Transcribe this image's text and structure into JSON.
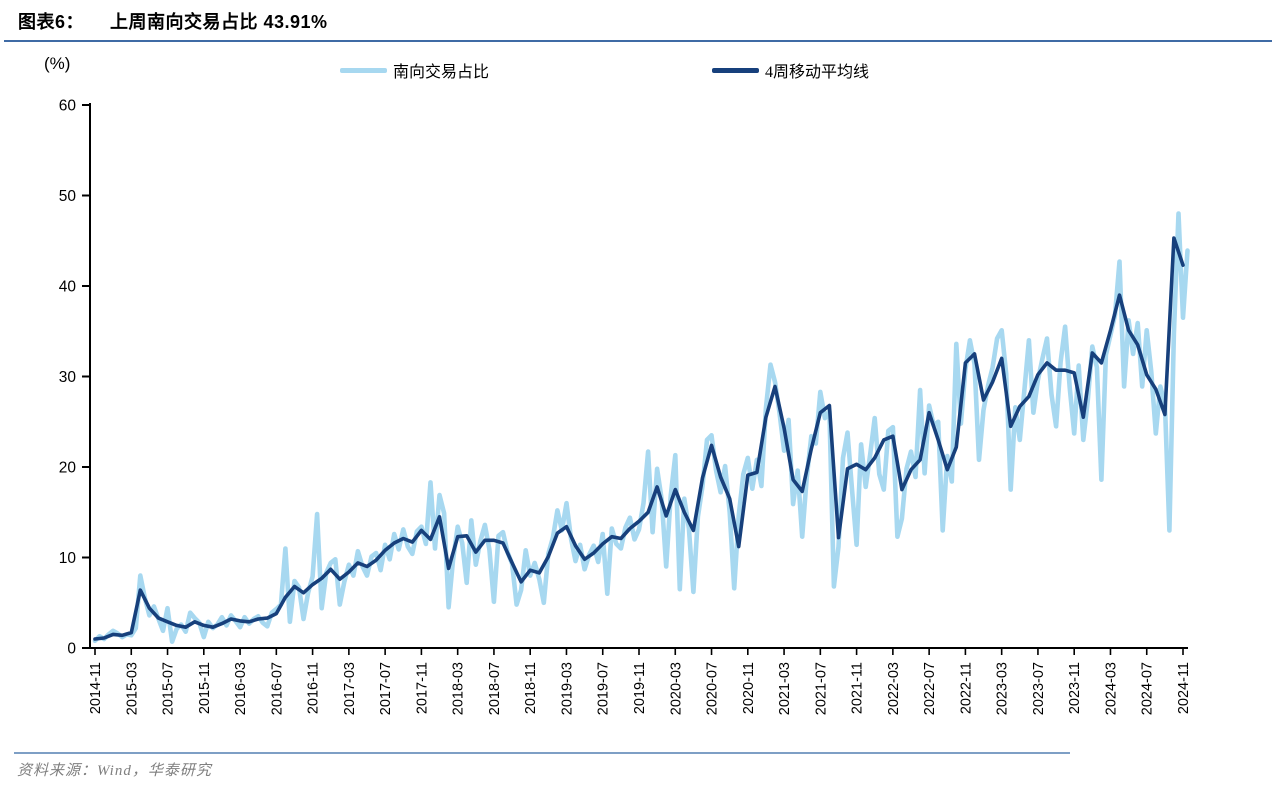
{
  "figure": {
    "label": "图表6：",
    "title": "上周南向交易占比 43.91%",
    "unit_label": "(%)",
    "source_note": "资料来源：Wind，华泰研究"
  },
  "legend": [
    {
      "label": "南向交易占比",
      "color": "#A7D8F0"
    },
    {
      "label": "4周移动平均线",
      "color": "#17407C"
    }
  ],
  "chart_data": {
    "type": "line",
    "title": "上周南向交易占比 43.91%",
    "ylabel": "(%)",
    "ylim": [
      0,
      60
    ],
    "y_ticks": [
      0,
      10,
      20,
      30,
      40,
      50,
      60
    ],
    "grid": false,
    "legend_position": "top",
    "x_start": "2014-11",
    "x_end": "2024-11",
    "x_tick_labels": [
      "2014-11",
      "2015-03",
      "2015-07",
      "2015-11",
      "2016-03",
      "2016-07",
      "2016-11",
      "2017-03",
      "2017-07",
      "2017-11",
      "2018-03",
      "2018-07",
      "2018-11",
      "2019-03",
      "2019-07",
      "2019-11",
      "2020-03",
      "2020-07",
      "2020-11",
      "2021-03",
      "2021-07",
      "2021-11",
      "2022-03",
      "2022-07",
      "2022-11",
      "2023-03",
      "2023-07",
      "2023-11",
      "2024-03",
      "2024-07",
      "2024-11"
    ],
    "series": [
      {
        "name": "南向交易占比",
        "color": "#A7D8F0",
        "points_per_month": 2,
        "values": [
          0.8,
          1.3,
          1.0,
          1.5,
          1.9,
          1.6,
          1.2,
          1.5,
          1.4,
          2.2,
          8.0,
          5.5,
          3.6,
          4.6,
          3.2,
          1.9,
          4.4,
          0.7,
          2.1,
          2.6,
          1.8,
          3.9,
          3.3,
          2.8,
          1.2,
          2.9,
          2.2,
          2.6,
          3.4,
          2.5,
          3.6,
          3.0,
          2.3,
          3.4,
          2.7,
          3.2,
          3.5,
          2.8,
          2.4,
          3.9,
          4.3,
          4.8,
          11.0,
          2.9,
          7.4,
          6.7,
          3.2,
          6.1,
          7.9,
          14.8,
          4.4,
          8.3,
          9.4,
          9.8,
          4.8,
          7.3,
          9.2,
          8.0,
          10.7,
          9.0,
          8.0,
          10.1,
          10.5,
          8.6,
          11.4,
          9.8,
          12.6,
          10.9,
          13.1,
          11.2,
          10.4,
          12.9,
          13.4,
          11.5,
          18.3,
          11.0,
          16.9,
          14.9,
          4.5,
          9.8,
          13.4,
          11.6,
          7.2,
          14.1,
          9.2,
          11.8,
          13.6,
          10.9,
          5.1,
          12.4,
          12.8,
          10.6,
          9.3,
          4.8,
          6.4,
          10.8,
          8.0,
          9.4,
          7.6,
          5.0,
          10.4,
          12.2,
          15.2,
          13.0,
          16.0,
          12.1,
          9.6,
          11.4,
          8.7,
          10.3,
          11.3,
          9.5,
          12.6,
          6.0,
          13.2,
          11.5,
          11.0,
          13.3,
          14.4,
          12.0,
          13.1,
          16.0,
          21.7,
          12.8,
          19.8,
          16.4,
          9.0,
          16.8,
          21.3,
          6.5,
          16.5,
          13.2,
          6.2,
          14.5,
          17.9,
          23.0,
          23.5,
          19.6,
          17.2,
          20.1,
          15.0,
          6.6,
          14.6,
          19.2,
          21.0,
          17.6,
          20.8,
          17.9,
          26.5,
          31.3,
          29.4,
          26.0,
          21.8,
          25.2,
          15.9,
          19.6,
          12.3,
          18.8,
          23.4,
          22.6,
          28.3,
          25.4,
          26.2,
          6.8,
          11.2,
          21.0,
          23.8,
          17.4,
          11.4,
          22.5,
          17.8,
          21.4,
          25.4,
          19.2,
          17.5,
          24.0,
          24.4,
          12.3,
          14.3,
          19.8,
          21.7,
          18.9,
          28.5,
          19.3,
          26.8,
          24.6,
          25.0,
          13.0,
          21.2,
          18.4,
          33.6,
          24.8,
          30.8,
          34.0,
          31.4,
          20.8,
          26.3,
          29.0,
          31.0,
          34.2,
          35.1,
          30.3,
          17.5,
          26.6,
          23.0,
          28.4,
          34.0,
          26.0,
          29.6,
          32.0,
          34.2,
          28.0,
          24.5,
          31.6,
          35.5,
          28.8,
          23.7,
          31.2,
          23.0,
          27.4,
          33.3,
          31.0,
          18.6,
          32.4,
          34.6,
          36.8,
          42.7,
          28.9,
          36.2,
          32.5,
          35.9,
          28.9,
          35.1,
          30.5,
          23.7,
          28.9,
          27.0,
          13.0,
          34.8,
          48.0,
          36.5,
          43.91
        ]
      },
      {
        "name": "4周移动平均线",
        "color": "#17407C",
        "points_per_month": 1,
        "values": [
          1.0,
          1.1,
          1.5,
          1.4,
          1.7,
          6.4,
          4.4,
          3.3,
          2.9,
          2.5,
          2.3,
          2.9,
          2.5,
          2.3,
          2.7,
          3.2,
          3.0,
          2.9,
          3.2,
          3.3,
          3.8,
          5.6,
          6.8,
          6.1,
          7.0,
          7.7,
          8.7,
          7.6,
          8.4,
          9.4,
          9.0,
          9.7,
          10.8,
          11.6,
          12.1,
          11.7,
          13.0,
          12.0,
          14.5,
          8.8,
          12.3,
          12.4,
          10.6,
          11.9,
          11.9,
          11.6,
          9.4,
          7.3,
          8.6,
          8.3,
          10.1,
          12.7,
          13.4,
          11.3,
          9.8,
          10.5,
          11.5,
          12.3,
          12.1,
          13.2,
          14.0,
          15.0,
          17.8,
          14.6,
          17.5,
          15.0,
          13.0,
          18.8,
          22.4,
          18.9,
          16.5,
          11.2,
          19.1,
          19.4,
          25.5,
          28.9,
          24.3,
          18.6,
          17.3,
          22.0,
          26.0,
          26.8,
          12.2,
          19.8,
          20.3,
          19.7,
          21.0,
          23.0,
          23.4,
          17.5,
          19.7,
          20.8,
          26.0,
          23.0,
          19.7,
          22.2,
          31.5,
          32.5,
          27.4,
          29.4,
          32.0,
          24.5,
          26.7,
          27.8,
          30.2,
          31.5,
          30.7,
          30.7,
          30.4,
          25.5,
          32.6,
          31.5,
          35.1,
          39.0,
          35.1,
          33.5,
          30.2,
          28.6,
          25.8,
          45.3,
          42.3
        ]
      }
    ]
  }
}
